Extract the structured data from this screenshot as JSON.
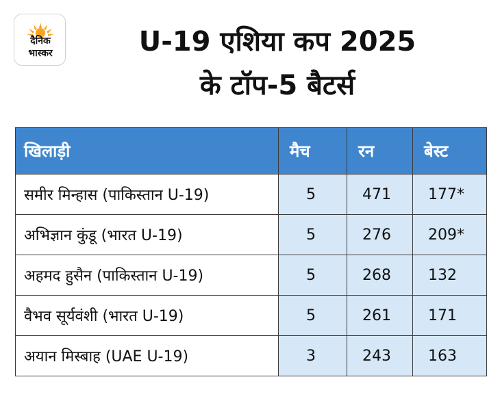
{
  "logo": {
    "line1": "दैनिक",
    "line2": "भास्कर",
    "sun_color": "#f5a623"
  },
  "title": {
    "line1": "U-19 एशिया कप 2025",
    "line2": "के टॉप-5 बैटर्स"
  },
  "table": {
    "headers": [
      "खिलाड़ी",
      "मैच",
      "रन",
      "बेस्ट"
    ],
    "rows": [
      [
        "समीर मिन्हास (पाकिस्तान U-19)",
        "5",
        "471",
        "177*"
      ],
      [
        "अभिज्ञान कुंडू (भारत U-19)",
        "5",
        "276",
        "209*"
      ],
      [
        "अहमद हुसैन (पाकिस्तान U-19)",
        "5",
        "268",
        "132"
      ],
      [
        "वैभव सूर्यवंशी (भारत U-19)",
        "5",
        "261",
        "171"
      ],
      [
        "अयान मिस्बाह (UAE U-19)",
        "3",
        "243",
        "163"
      ]
    ]
  },
  "colors": {
    "header_bg": "#3f86cf",
    "stat_cell_bg": "#d6e7f7"
  }
}
